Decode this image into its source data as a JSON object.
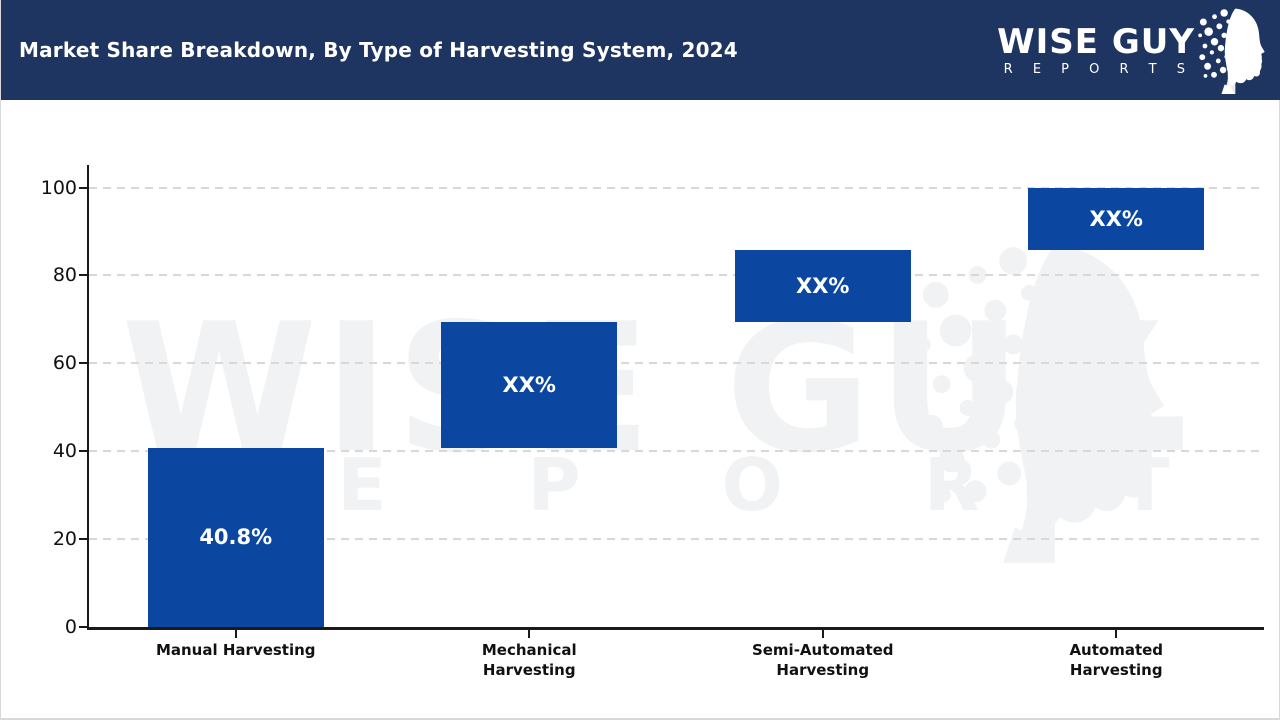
{
  "header": {
    "title": "Market Share Breakdown, By Type of Harvesting System, 2024",
    "logo": {
      "line1": "WISE GUY",
      "line2": "R E P O R T S"
    }
  },
  "watermark": {
    "line1": "WISE GUY.",
    "line2": "R E P O R T S"
  },
  "chart_data": {
    "type": "bar",
    "subtype": "waterfall",
    "title": "Market Share Breakdown, By Type of Harvesting System, 2024",
    "categories": [
      "Manual Harvesting",
      "Mechanical\nHarvesting",
      "Semi-Automated\nHarvesting",
      "Automated\nHarvesting"
    ],
    "segments": [
      {
        "category": "Manual Harvesting",
        "start": 0,
        "end": 40.8,
        "label": "40.8%"
      },
      {
        "category": "Mechanical Harvesting",
        "start": 40.8,
        "end": 69.3,
        "label": "XX%"
      },
      {
        "category": "Semi-Automated Harvesting",
        "start": 69.3,
        "end": 85.7,
        "label": "XX%"
      },
      {
        "category": "Automated Harvesting",
        "start": 85.7,
        "end": 100,
        "label": "XX%"
      }
    ],
    "xlabel": "",
    "ylabel": "",
    "ylim": [
      0,
      100
    ],
    "yticks": [
      0,
      20,
      40,
      60,
      80,
      100
    ],
    "grid": "horizontal-dashed",
    "legend": "none"
  },
  "colors": {
    "header_bg": "#1f3561",
    "bar_fill": "#0b47a0",
    "bar_label": "#ffffff",
    "gridline": "#d8d8d8",
    "axis": "#1a1a1a",
    "watermark": "#f1f2f4"
  }
}
